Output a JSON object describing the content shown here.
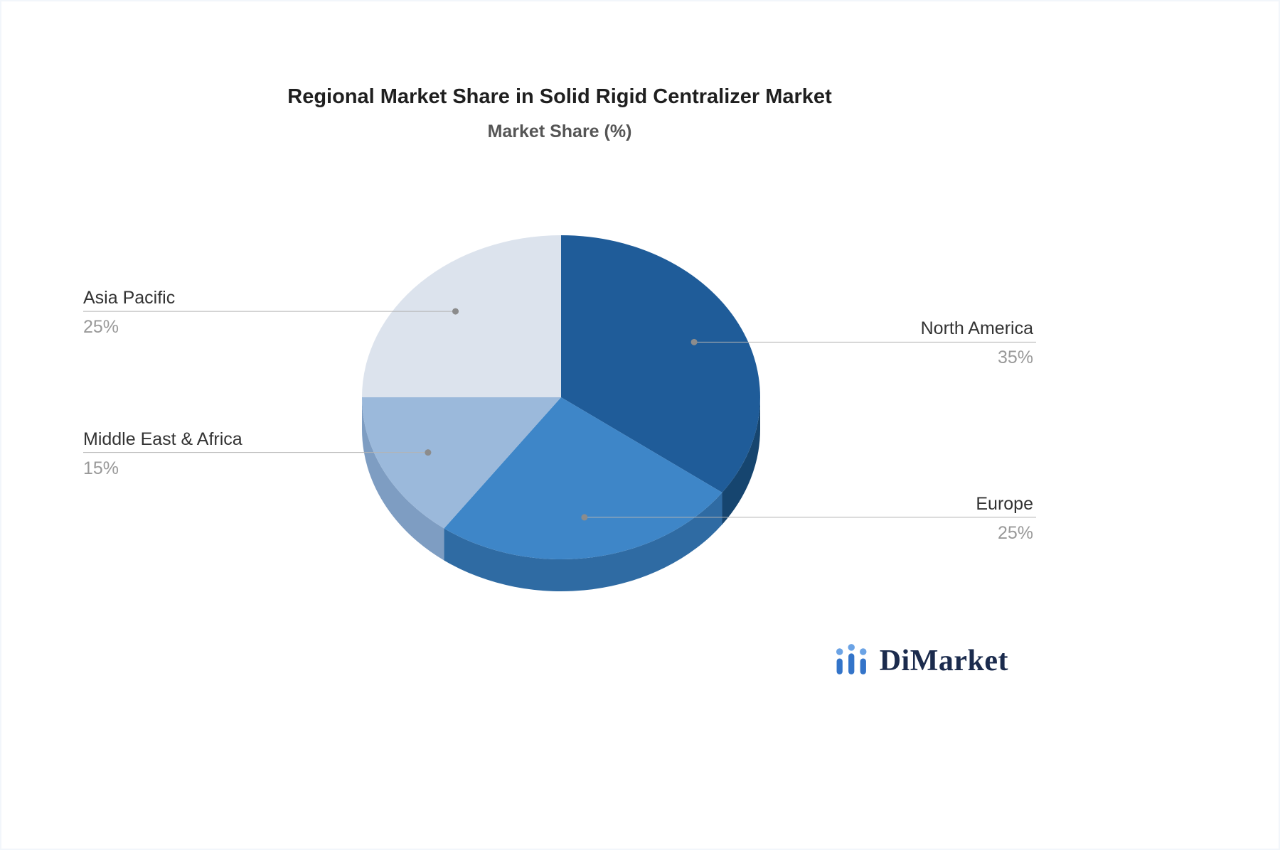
{
  "chart_data": {
    "type": "pie",
    "style": "3d",
    "title": "Regional Market Share in Solid Rigid Centralizer Market",
    "subtitle": "Market Share (%)",
    "unit": "%",
    "start_angle_deg": -90,
    "direction": "clockwise",
    "legend_position": "none",
    "slices": [
      {
        "label": "North America",
        "value": 35,
        "percent_label": "35%",
        "color": "#1F5C99",
        "side_color": "#16456F",
        "label_side": "right"
      },
      {
        "label": "Europe",
        "value": 25,
        "percent_label": "25%",
        "color": "#3E86C8",
        "side_color": "#2F6BA3",
        "label_side": "right"
      },
      {
        "label": "Middle East & Africa",
        "value": 15,
        "percent_label": "15%",
        "color": "#9BB9DB",
        "side_color": "#7E9DC2",
        "label_side": "left"
      },
      {
        "label": "Asia Pacific",
        "value": 25,
        "percent_label": "25%",
        "color": "#DCE3ED",
        "side_color": "#C3CEDF",
        "label_side": "left"
      }
    ],
    "leader_line_color": "#b3b3b3",
    "dot_color": "#8c8c8c"
  },
  "brand": {
    "name": "DiMarket",
    "icon": "bar-chart-logo-icon",
    "icon_bar_color": "#3374c9",
    "icon_dot_color": "#6ba3e5",
    "text_color": "#1b2b4d"
  }
}
